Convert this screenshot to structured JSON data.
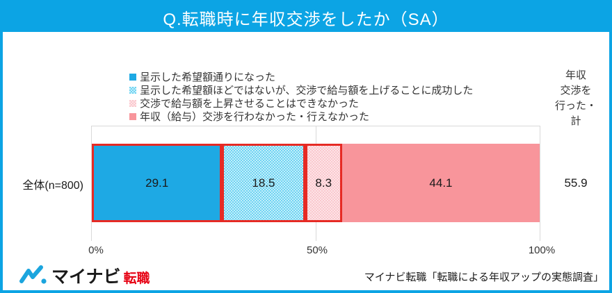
{
  "banner": {
    "title": "Q.転職時に年収交渉をしたか（SA）",
    "background_color": "#0ca4e4"
  },
  "chart_data": {
    "type": "bar",
    "orientation": "horizontal-stacked",
    "title": "Q.転職時に年収交渉をしたか（SA）",
    "categories": [
      "全体(n=800)"
    ],
    "series": [
      {
        "name": "呈示した希望額通りになった",
        "value": 29.1,
        "display": "29.1",
        "color": "#1ea9e4",
        "fill": "solid",
        "dot_color": "",
        "highlighted": true
      },
      {
        "name": "呈示した希望額ほどではないが、交渉で給与額を上げることに成功した",
        "value": 18.5,
        "display": "18.5",
        "color": "#6fd4f2",
        "fill": "dotted",
        "dot_color": "#c4eefb",
        "highlighted": true
      },
      {
        "name": "交渉で給与額を上昇させることはできなかった",
        "value": 8.3,
        "display": "8.3",
        "color": "#fac8ce",
        "fill": "dotted",
        "dot_color": "#fde4e7",
        "highlighted": true
      },
      {
        "name": "年収（給与）交渉を行わなかった・行えなかった",
        "value": 44.1,
        "display": "44.1",
        "color": "#f8959b",
        "fill": "solid",
        "dot_color": "",
        "highlighted": false
      }
    ],
    "highlight_border_color": "#e62a24",
    "total": {
      "label": "年収\n交渉を\n行った・\n計",
      "value": 55.9,
      "display": "55.9"
    },
    "x_ticks": [
      "0%",
      "50%",
      "100%"
    ],
    "xlim": [
      0,
      100
    ],
    "gridlines": "vertical at 0%, 50%, 100%",
    "legend_position": "top"
  },
  "footer": {
    "logo_text": "マイナビ",
    "logo_suffix": "転職",
    "logo_color": "#1ba5de",
    "source": "マイナビ転職「転職による年収アップの実態調査」"
  }
}
